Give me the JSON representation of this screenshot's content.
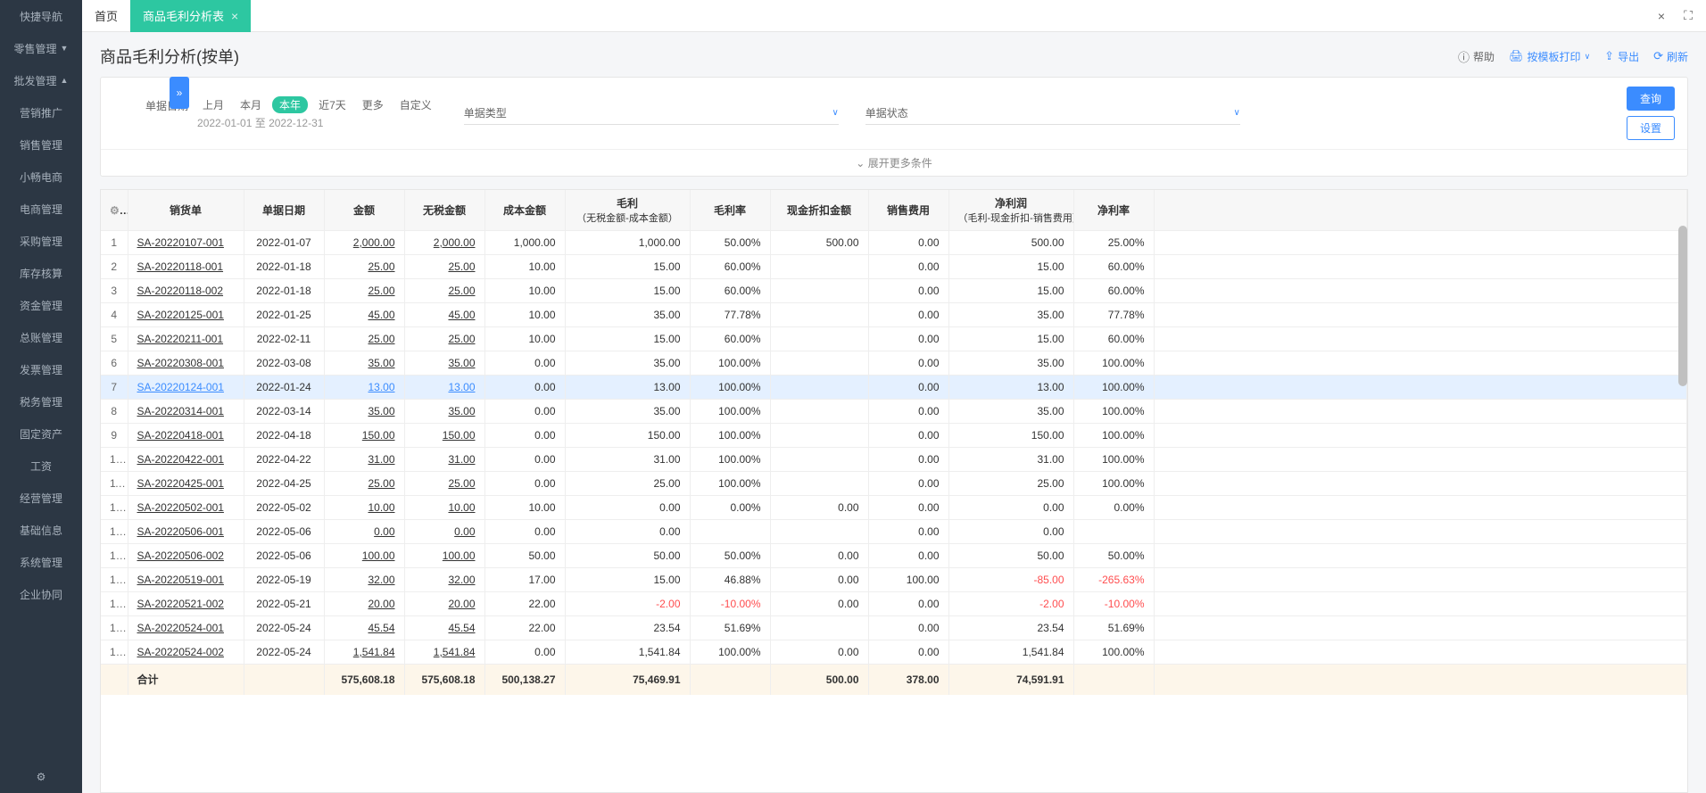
{
  "sidebar": {
    "items": [
      {
        "label": "快捷导航",
        "caret": ""
      },
      {
        "label": "零售管理",
        "caret": "▼"
      },
      {
        "label": "批发管理",
        "caret": "▲"
      },
      {
        "label": "营销推广",
        "caret": ""
      },
      {
        "label": "销售管理",
        "caret": ""
      },
      {
        "label": "小畅电商",
        "caret": ""
      },
      {
        "label": "电商管理",
        "caret": ""
      },
      {
        "label": "采购管理",
        "caret": ""
      },
      {
        "label": "库存核算",
        "caret": ""
      },
      {
        "label": "资金管理",
        "caret": ""
      },
      {
        "label": "总账管理",
        "caret": ""
      },
      {
        "label": "发票管理",
        "caret": ""
      },
      {
        "label": "税务管理",
        "caret": ""
      },
      {
        "label": "固定资产",
        "caret": ""
      },
      {
        "label": "工资",
        "caret": ""
      },
      {
        "label": "经营管理",
        "caret": ""
      },
      {
        "label": "基础信息",
        "caret": ""
      },
      {
        "label": "系统管理",
        "caret": ""
      },
      {
        "label": "企业协同",
        "caret": ""
      }
    ]
  },
  "tabs": {
    "home": "首页",
    "active": "商品毛利分析表"
  },
  "page": {
    "title": "商品毛利分析(按单)"
  },
  "headerActions": {
    "help": "帮助",
    "printTpl": "按模板打印",
    "export": "导出",
    "refresh": "刷新"
  },
  "filter": {
    "dateLabel": "单据日期",
    "chips": [
      "上月",
      "本月",
      "本年",
      "近7天",
      "更多",
      "自定义"
    ],
    "activeChip": 2,
    "rangeText": "2022-01-01 至 2022-12-31",
    "docType": "单据类型",
    "docStatus": "单据状态",
    "queryBtn": "查询",
    "settingBtn": "设置",
    "expand": "展开更多条件"
  },
  "table": {
    "headers": {
      "doc": "销货单",
      "date": "单据日期",
      "amount": "金额",
      "noTax": "无税金额",
      "cost": "成本金额",
      "gross": "毛利",
      "grossSub": "（无税金额-成本金额）",
      "grossRate": "毛利率",
      "cashDisc": "现金折扣金额",
      "saleExp": "销售费用",
      "netProfit": "净利润",
      "netProfitSub": "（毛利-现金折扣-销售费用）",
      "netRate": "净利率"
    },
    "rows": [
      {
        "doc": "SA-20220107-001",
        "date": "2022-01-07",
        "amount": "2,000.00",
        "noTax": "2,000.00",
        "cost": "1,000.00",
        "gross": "1,000.00",
        "grossRate": "50.00%",
        "cashDisc": "500.00",
        "saleExp": "0.00",
        "netProfit": "500.00",
        "netRate": "25.00%"
      },
      {
        "doc": "SA-20220118-001",
        "date": "2022-01-18",
        "amount": "25.00",
        "noTax": "25.00",
        "cost": "10.00",
        "gross": "15.00",
        "grossRate": "60.00%",
        "cashDisc": "",
        "saleExp": "0.00",
        "netProfit": "15.00",
        "netRate": "60.00%"
      },
      {
        "doc": "SA-20220118-002",
        "date": "2022-01-18",
        "amount": "25.00",
        "noTax": "25.00",
        "cost": "10.00",
        "gross": "15.00",
        "grossRate": "60.00%",
        "cashDisc": "",
        "saleExp": "0.00",
        "netProfit": "15.00",
        "netRate": "60.00%"
      },
      {
        "doc": "SA-20220125-001",
        "date": "2022-01-25",
        "amount": "45.00",
        "noTax": "45.00",
        "cost": "10.00",
        "gross": "35.00",
        "grossRate": "77.78%",
        "cashDisc": "",
        "saleExp": "0.00",
        "netProfit": "35.00",
        "netRate": "77.78%"
      },
      {
        "doc": "SA-20220211-001",
        "date": "2022-02-11",
        "amount": "25.00",
        "noTax": "25.00",
        "cost": "10.00",
        "gross": "15.00",
        "grossRate": "60.00%",
        "cashDisc": "",
        "saleExp": "0.00",
        "netProfit": "15.00",
        "netRate": "60.00%"
      },
      {
        "doc": "SA-20220308-001",
        "date": "2022-03-08",
        "amount": "35.00",
        "noTax": "35.00",
        "cost": "0.00",
        "gross": "35.00",
        "grossRate": "100.00%",
        "cashDisc": "",
        "saleExp": "0.00",
        "netProfit": "35.00",
        "netRate": "100.00%"
      },
      {
        "doc": "SA-20220124-001",
        "date": "2022-01-24",
        "amount": "13.00",
        "noTax": "13.00",
        "cost": "0.00",
        "gross": "13.00",
        "grossRate": "100.00%",
        "cashDisc": "",
        "saleExp": "0.00",
        "netProfit": "13.00",
        "netRate": "100.00%",
        "hl": true
      },
      {
        "doc": "SA-20220314-001",
        "date": "2022-03-14",
        "amount": "35.00",
        "noTax": "35.00",
        "cost": "0.00",
        "gross": "35.00",
        "grossRate": "100.00%",
        "cashDisc": "",
        "saleExp": "0.00",
        "netProfit": "35.00",
        "netRate": "100.00%"
      },
      {
        "doc": "SA-20220418-001",
        "date": "2022-04-18",
        "amount": "150.00",
        "noTax": "150.00",
        "cost": "0.00",
        "gross": "150.00",
        "grossRate": "100.00%",
        "cashDisc": "",
        "saleExp": "0.00",
        "netProfit": "150.00",
        "netRate": "100.00%"
      },
      {
        "doc": "SA-20220422-001",
        "date": "2022-04-22",
        "amount": "31.00",
        "noTax": "31.00",
        "cost": "0.00",
        "gross": "31.00",
        "grossRate": "100.00%",
        "cashDisc": "",
        "saleExp": "0.00",
        "netProfit": "31.00",
        "netRate": "100.00%"
      },
      {
        "doc": "SA-20220425-001",
        "date": "2022-04-25",
        "amount": "25.00",
        "noTax": "25.00",
        "cost": "0.00",
        "gross": "25.00",
        "grossRate": "100.00%",
        "cashDisc": "",
        "saleExp": "0.00",
        "netProfit": "25.00",
        "netRate": "100.00%"
      },
      {
        "doc": "SA-20220502-001",
        "date": "2022-05-02",
        "amount": "10.00",
        "noTax": "10.00",
        "cost": "10.00",
        "gross": "0.00",
        "grossRate": "0.00%",
        "cashDisc": "0.00",
        "saleExp": "0.00",
        "netProfit": "0.00",
        "netRate": "0.00%"
      },
      {
        "doc": "SA-20220506-001",
        "date": "2022-05-06",
        "amount": "0.00",
        "noTax": "0.00",
        "cost": "0.00",
        "gross": "0.00",
        "grossRate": "",
        "cashDisc": "",
        "saleExp": "0.00",
        "netProfit": "0.00",
        "netRate": ""
      },
      {
        "doc": "SA-20220506-002",
        "date": "2022-05-06",
        "amount": "100.00",
        "noTax": "100.00",
        "cost": "50.00",
        "gross": "50.00",
        "grossRate": "50.00%",
        "cashDisc": "0.00",
        "saleExp": "0.00",
        "netProfit": "50.00",
        "netRate": "50.00%"
      },
      {
        "doc": "SA-20220519-001",
        "date": "2022-05-19",
        "amount": "32.00",
        "noTax": "32.00",
        "cost": "17.00",
        "gross": "15.00",
        "grossRate": "46.88%",
        "cashDisc": "0.00",
        "saleExp": "100.00",
        "netProfit": "-85.00",
        "netRate": "-265.63%",
        "neg": true
      },
      {
        "doc": "SA-20220521-002",
        "date": "2022-05-21",
        "amount": "20.00",
        "noTax": "20.00",
        "cost": "22.00",
        "gross": "-2.00",
        "grossRate": "-10.00%",
        "cashDisc": "0.00",
        "saleExp": "0.00",
        "netProfit": "-2.00",
        "netRate": "-10.00%",
        "neg": true,
        "negGross": true
      },
      {
        "doc": "SA-20220524-001",
        "date": "2022-05-24",
        "amount": "45.54",
        "noTax": "45.54",
        "cost": "22.00",
        "gross": "23.54",
        "grossRate": "51.69%",
        "cashDisc": "",
        "saleExp": "0.00",
        "netProfit": "23.54",
        "netRate": "51.69%"
      },
      {
        "doc": "SA-20220524-002",
        "date": "2022-05-24",
        "amount": "1,541.84",
        "noTax": "1,541.84",
        "cost": "0.00",
        "gross": "1,541.84",
        "grossRate": "100.00%",
        "cashDisc": "0.00",
        "saleExp": "0.00",
        "netProfit": "1,541.84",
        "netRate": "100.00%"
      }
    ],
    "footer": {
      "label": "合计",
      "amount": "575,608.18",
      "noTax": "575,608.18",
      "cost": "500,138.27",
      "gross": "75,469.91",
      "cashDisc": "500.00",
      "saleExp": "378.00",
      "netProfit": "74,591.91"
    }
  }
}
